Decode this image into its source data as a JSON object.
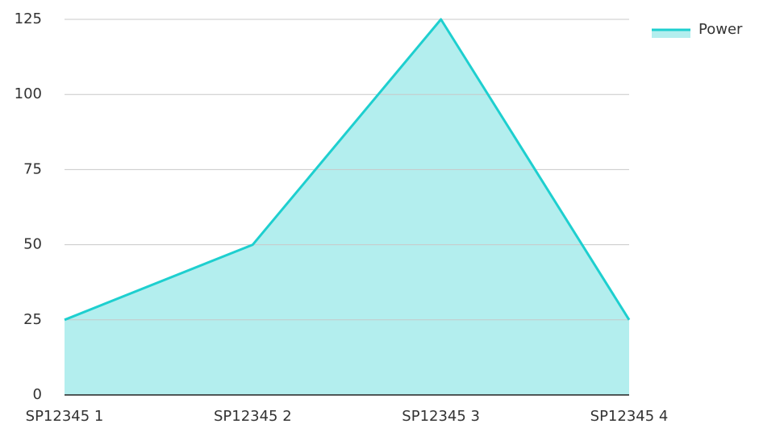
{
  "chart_data": {
    "type": "area",
    "categories": [
      "SP12345 1",
      "SP12345 2",
      "SP12345 3",
      "SP12345 4"
    ],
    "series": [
      {
        "name": "Power",
        "color": "#1ecfcf",
        "fill": "#b3eeee",
        "values": [
          25,
          50,
          125,
          25
        ]
      }
    ],
    "ylim": [
      0,
      125
    ],
    "yticks": [
      0,
      25,
      50,
      75,
      100,
      125
    ],
    "grid": true,
    "legend": "top-right"
  }
}
